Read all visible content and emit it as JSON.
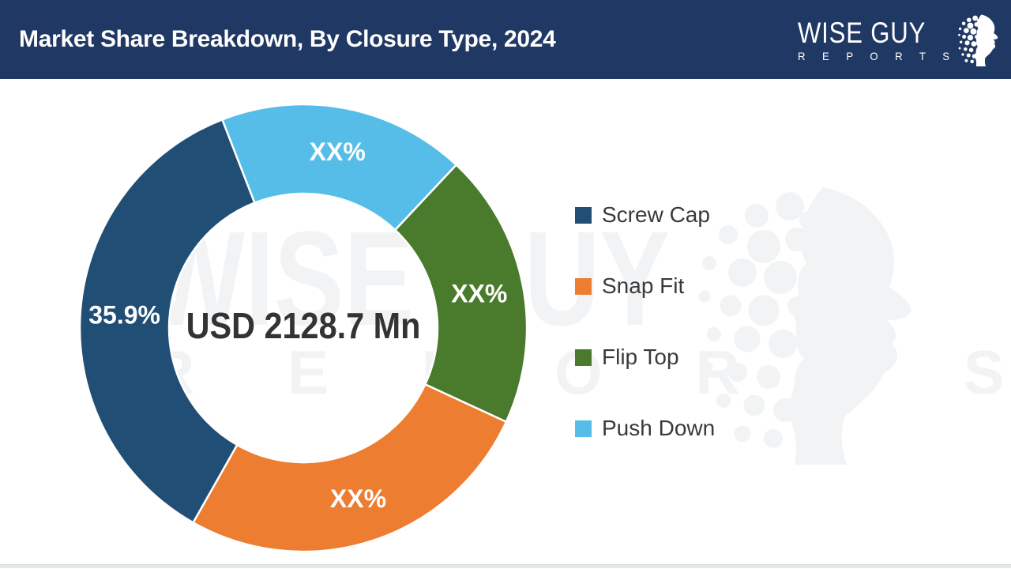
{
  "header": {
    "title": "Market Share Breakdown, By Closure Type, 2024",
    "bg_color": "#203864",
    "logo": {
      "line1": "WISE GUY",
      "line2": "R E P O R T S"
    }
  },
  "watermark": {
    "line1": "WISE GUY",
    "line2": "R E P O R T S"
  },
  "chart_data": {
    "type": "pie",
    "subtype": "donut",
    "title": "Market Share Breakdown, By Closure Type, 2024",
    "center_label": "USD 2128.7 Mn",
    "units": "percent share",
    "start_angle_deg": 209.5,
    "clockwise": true,
    "slices": [
      {
        "label": "Screw Cap",
        "display_label": "35.9%",
        "value_pct": 35.9,
        "color": "#204E74"
      },
      {
        "label": "Push Down",
        "display_label": "XX%",
        "value_pct": 17.9,
        "color": "#56BDE8"
      },
      {
        "label": "Flip Top",
        "display_label": "XX%",
        "value_pct": 19.9,
        "color": "#4A7A2B"
      },
      {
        "label": "Snap Fit",
        "display_label": "XX%",
        "value_pct": 26.3,
        "color": "#ED7D31"
      }
    ],
    "legend_order": [
      0,
      3,
      2,
      1
    ],
    "legend_position": "right",
    "label_color": "#ffffff",
    "center_label_color": "#333333",
    "legend_text_color": "#3a3a3a",
    "watermark_color": "#f2f3f5"
  }
}
